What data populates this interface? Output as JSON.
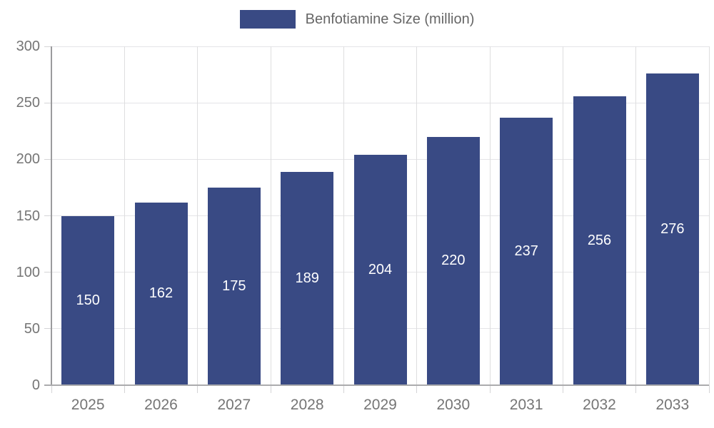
{
  "legend": {
    "label": "Benfotiamine Size (million)"
  },
  "chart_data": {
    "type": "bar",
    "title": "",
    "categories": [
      "2025",
      "2026",
      "2027",
      "2028",
      "2029",
      "2030",
      "2031",
      "2032",
      "2033"
    ],
    "values": [
      150,
      162,
      175,
      189,
      204,
      220,
      237,
      256,
      276
    ],
    "series_name": "Benfotiamine Size (million)",
    "xlabel": "",
    "ylabel": "",
    "ylim": [
      0,
      300
    ],
    "yticks": [
      0,
      50,
      100,
      150,
      200,
      250,
      300
    ],
    "grid": true,
    "legend_position": "top",
    "bar_color": "#394a84",
    "bar_label_color": "#ffffff",
    "axis_text_color": "#757575"
  }
}
